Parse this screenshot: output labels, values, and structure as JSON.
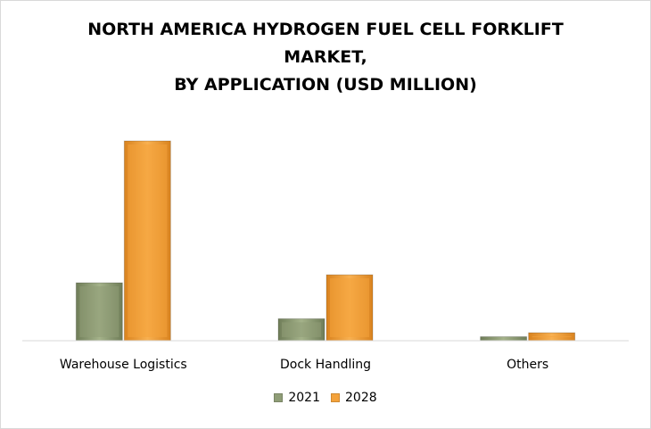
{
  "chart_data": {
    "type": "bar",
    "title_lines": [
      "NORTH AMERICA HYDROGEN FUEL CELL FORKLIFT",
      "MARKET,",
      "BY APPLICATION (USD MILLION)"
    ],
    "categories": [
      "Warehouse Logistics",
      "Dock Handling",
      "Others"
    ],
    "series": [
      {
        "name": "2021",
        "values": [
          29,
          11,
          2
        ],
        "color": "#8f9d77"
      },
      {
        "name": "2028",
        "values": [
          100,
          33,
          4
        ],
        "color": "#f4a23b"
      }
    ],
    "xlabel": "",
    "ylabel": "",
    "ylim": [
      0,
      100
    ],
    "grid": false,
    "legend_position": "bottom"
  }
}
